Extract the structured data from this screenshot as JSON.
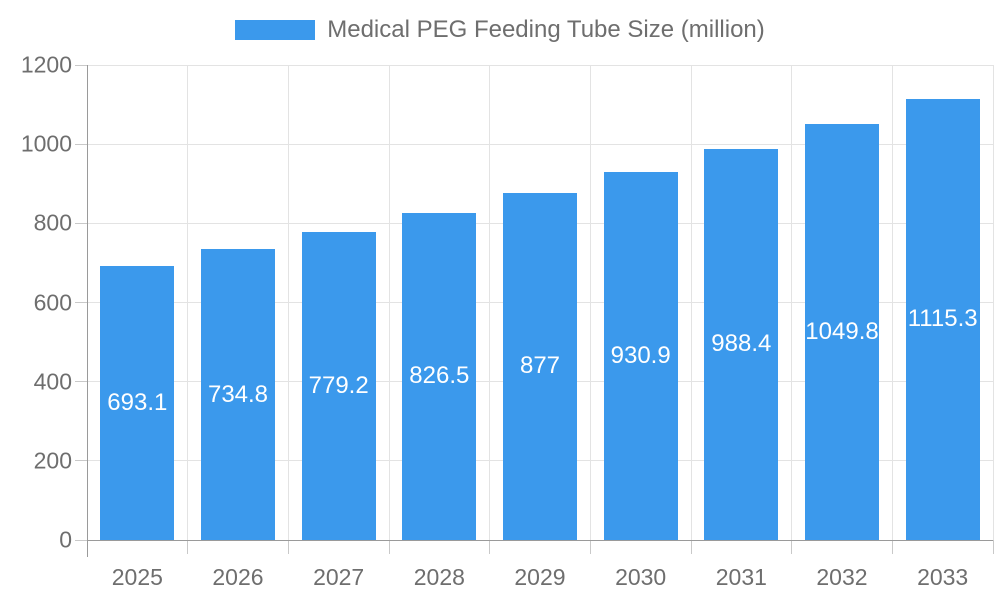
{
  "legend": {
    "label": "Medical PEG Feeding Tube Size (million)"
  },
  "chart_data": {
    "type": "bar",
    "title": "Medical PEG Feeding Tube Size (million)",
    "categories": [
      "2025",
      "2026",
      "2027",
      "2028",
      "2029",
      "2030",
      "2031",
      "2032",
      "2033"
    ],
    "values": [
      693.1,
      734.8,
      779.2,
      826.5,
      877,
      930.9,
      988.4,
      1049.8,
      1115.3
    ],
    "value_labels": [
      "693.1",
      "734.8",
      "779.2",
      "826.5",
      "877",
      "930.9",
      "988.4",
      "1049.8",
      "1115.3"
    ],
    "xlabel": "",
    "ylabel": "",
    "ylim": [
      0,
      1200
    ],
    "ytick_step": 200,
    "yticks": [
      0,
      200,
      400,
      600,
      800,
      1000,
      1200
    ],
    "grid": "both",
    "legend_position": "top-center",
    "value_label_position": "center-of-bar",
    "colors": {
      "bar": "#3b99ec",
      "bar_label": "#ffffff",
      "axis_text": "#6e6e6e",
      "grid_line": "#e3e3e3",
      "axis_line": "#9a9a9a",
      "background": "#ffffff"
    }
  }
}
